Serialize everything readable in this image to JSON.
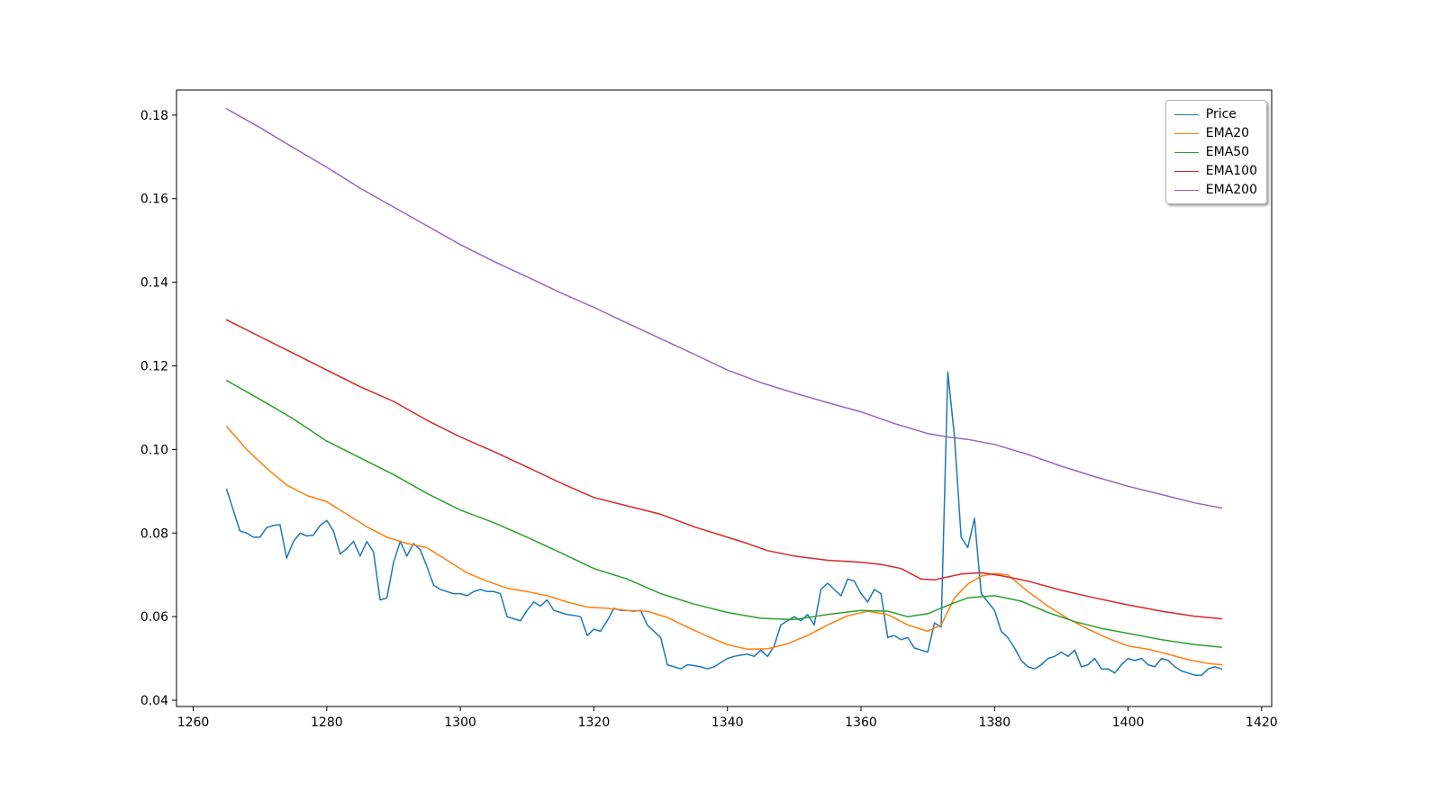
{
  "figure": {
    "background": "#ffffff"
  },
  "chart_data": {
    "type": "line",
    "title": "",
    "xlabel": "",
    "ylabel": "",
    "grid": false,
    "axis_color": "#000000",
    "xlim": [
      1257.5,
      1421.5
    ],
    "ylim": [
      0.0385,
      0.186
    ],
    "x_ticks": [
      1260,
      1280,
      1300,
      1320,
      1340,
      1360,
      1380,
      1400,
      1420
    ],
    "y_ticks": [
      0.04,
      0.06,
      0.08,
      0.1,
      0.12,
      0.14,
      0.16,
      0.18
    ],
    "legend": {
      "position": "upper right",
      "entries": [
        "Price",
        "EMA20",
        "EMA50",
        "EMA100",
        "EMA200"
      ]
    },
    "series": [
      {
        "name": "Price",
        "color": "#1f77b4",
        "x_start": 1265,
        "x_step": 1,
        "y": [
          0.0905,
          0.0855,
          0.0805,
          0.08,
          0.079,
          0.079,
          0.0813,
          0.0818,
          0.082,
          0.074,
          0.078,
          0.08,
          0.0793,
          0.0795,
          0.0818,
          0.083,
          0.0805,
          0.075,
          0.0763,
          0.078,
          0.0745,
          0.078,
          0.0755,
          0.064,
          0.0645,
          0.073,
          0.078,
          0.0745,
          0.0775,
          0.076,
          0.072,
          0.0675,
          0.0665,
          0.066,
          0.0655,
          0.0655,
          0.065,
          0.066,
          0.0665,
          0.066,
          0.066,
          0.0655,
          0.06,
          0.0595,
          0.059,
          0.0615,
          0.0635,
          0.0625,
          0.064,
          0.0615,
          0.061,
          0.0605,
          0.0603,
          0.06,
          0.0555,
          0.057,
          0.0565,
          0.059,
          0.062,
          0.0615,
          0.0615,
          0.0613,
          0.0615,
          0.058,
          0.0565,
          0.055,
          0.0485,
          0.048,
          0.0475,
          0.0485,
          0.0483,
          0.048,
          0.0475,
          0.048,
          0.049,
          0.05,
          0.0505,
          0.0508,
          0.051,
          0.0505,
          0.052,
          0.0505,
          0.053,
          0.058,
          0.059,
          0.06,
          0.059,
          0.0605,
          0.058,
          0.0665,
          0.068,
          0.0665,
          0.065,
          0.069,
          0.0685,
          0.0655,
          0.0635,
          0.0665,
          0.0655,
          0.055,
          0.0555,
          0.0545,
          0.055,
          0.0525,
          0.052,
          0.0515,
          0.0585,
          0.0575,
          0.1185,
          0.103,
          0.079,
          0.0765,
          0.0835,
          0.0655,
          0.0635,
          0.0615,
          0.0565,
          0.055,
          0.0525,
          0.0495,
          0.048,
          0.0475,
          0.0485,
          0.05,
          0.0505,
          0.0515,
          0.0505,
          0.052,
          0.048,
          0.0485,
          0.05,
          0.0475,
          0.0475,
          0.0465,
          0.0485,
          0.05,
          0.0495,
          0.05,
          0.0485,
          0.048,
          0.05,
          0.0495,
          0.048,
          0.047,
          0.0465,
          0.046,
          0.046,
          0.0475,
          0.048,
          0.0475
        ]
      },
      {
        "name": "EMA20",
        "color": "#ff7f0e",
        "x": [
          1265,
          1268,
          1271,
          1274,
          1277,
          1280,
          1283,
          1286,
          1289,
          1292,
          1295,
          1298,
          1301,
          1304,
          1307,
          1310,
          1313,
          1316,
          1319,
          1322,
          1325,
          1328,
          1331,
          1334,
          1337,
          1340,
          1343,
          1346,
          1349,
          1352,
          1355,
          1358,
          1361,
          1364,
          1367,
          1370,
          1372,
          1374,
          1376,
          1378,
          1380,
          1382,
          1385,
          1388,
          1391,
          1394,
          1397,
          1400,
          1403,
          1406,
          1409,
          1412,
          1414
        ],
        "y": [
          0.1055,
          0.1,
          0.0955,
          0.0915,
          0.089,
          0.0875,
          0.0845,
          0.0815,
          0.079,
          0.0775,
          0.0765,
          0.0735,
          0.0705,
          0.0685,
          0.0668,
          0.066,
          0.065,
          0.0635,
          0.0623,
          0.062,
          0.0615,
          0.0613,
          0.0598,
          0.0575,
          0.0553,
          0.0533,
          0.0522,
          0.0523,
          0.0535,
          0.0555,
          0.058,
          0.0602,
          0.0613,
          0.0605,
          0.058,
          0.0565,
          0.058,
          0.0645,
          0.0678,
          0.0697,
          0.0703,
          0.07,
          0.066,
          0.0625,
          0.0595,
          0.057,
          0.0548,
          0.053,
          0.0522,
          0.051,
          0.0497,
          0.0488,
          0.0485
        ]
      },
      {
        "name": "EMA50",
        "color": "#2ca02c",
        "x": [
          1265,
          1270,
          1275,
          1280,
          1285,
          1290,
          1295,
          1300,
          1305,
          1310,
          1315,
          1320,
          1325,
          1330,
          1335,
          1340,
          1345,
          1350,
          1355,
          1360,
          1364,
          1367,
          1370,
          1373,
          1376,
          1380,
          1384,
          1388,
          1392,
          1396,
          1400,
          1405,
          1410,
          1414
        ],
        "y": [
          0.1165,
          0.112,
          0.1073,
          0.102,
          0.098,
          0.094,
          0.0895,
          0.0855,
          0.0825,
          0.079,
          0.0753,
          0.0715,
          0.069,
          0.0655,
          0.063,
          0.061,
          0.0596,
          0.0593,
          0.0605,
          0.0615,
          0.0613,
          0.06,
          0.0607,
          0.0627,
          0.0645,
          0.065,
          0.0637,
          0.061,
          0.0588,
          0.0572,
          0.056,
          0.0545,
          0.0533,
          0.0527
        ]
      },
      {
        "name": "EMA100",
        "color": "#d62728",
        "x": [
          1265,
          1270,
          1275,
          1280,
          1285,
          1290,
          1295,
          1300,
          1305,
          1310,
          1315,
          1320,
          1325,
          1330,
          1335,
          1340,
          1343,
          1346,
          1350,
          1355,
          1360,
          1363,
          1366,
          1369,
          1371,
          1373,
          1375,
          1378,
          1381,
          1385,
          1390,
          1395,
          1400,
          1405,
          1410,
          1414
        ],
        "y": [
          0.131,
          0.127,
          0.123,
          0.119,
          0.115,
          0.1115,
          0.107,
          0.103,
          0.0995,
          0.0958,
          0.092,
          0.0885,
          0.0865,
          0.0845,
          0.0815,
          0.079,
          0.0775,
          0.0758,
          0.0745,
          0.0735,
          0.073,
          0.0725,
          0.0715,
          0.069,
          0.0688,
          0.0695,
          0.0702,
          0.0705,
          0.0698,
          0.0685,
          0.0663,
          0.0645,
          0.0628,
          0.0613,
          0.0601,
          0.0595
        ]
      },
      {
        "name": "EMA200",
        "color": "#9467bd",
        "x": [
          1265,
          1270,
          1275,
          1280,
          1285,
          1290,
          1295,
          1300,
          1305,
          1310,
          1315,
          1320,
          1325,
          1330,
          1335,
          1340,
          1345,
          1350,
          1355,
          1360,
          1365,
          1370,
          1373,
          1376,
          1380,
          1385,
          1390,
          1395,
          1400,
          1405,
          1410,
          1414
        ],
        "y": [
          0.1815,
          0.177,
          0.1722,
          0.1675,
          0.1625,
          0.158,
          0.1535,
          0.149,
          0.145,
          0.1413,
          0.1375,
          0.134,
          0.1302,
          0.1265,
          0.1228,
          0.119,
          0.116,
          0.1135,
          0.1112,
          0.109,
          0.1062,
          0.1038,
          0.103,
          0.1024,
          0.1012,
          0.0988,
          0.096,
          0.0935,
          0.0912,
          0.0892,
          0.0872,
          0.086
        ]
      }
    ]
  }
}
